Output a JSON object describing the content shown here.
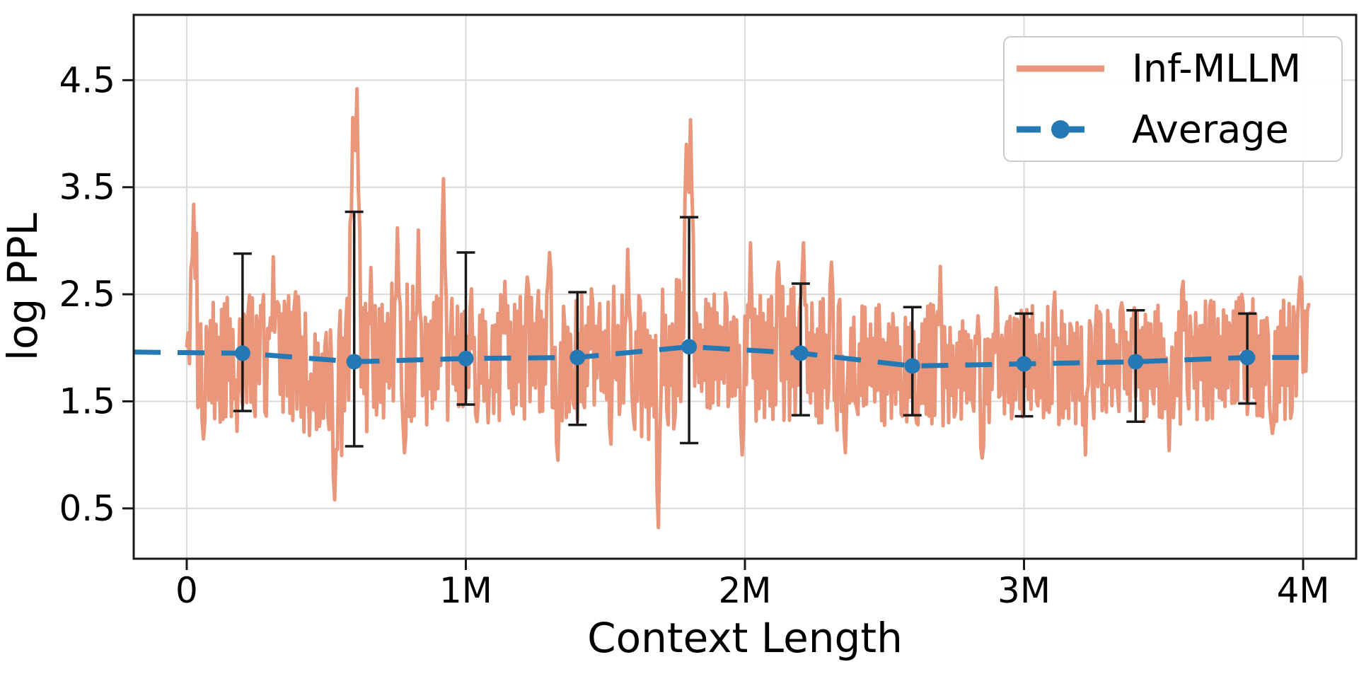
{
  "chart_data": {
    "type": "line",
    "title": "",
    "xlabel": "Context Length",
    "ylabel": "log PPL",
    "axes": {
      "xlim": [
        -0.19,
        4.19
      ],
      "ylim": [
        0.03,
        5.11
      ],
      "x_in_millions": true,
      "grid": true,
      "grid_color": "#d9d9d9",
      "spine_color": "#1a1a1a",
      "xticks": [
        {
          "value": 0,
          "label": "0"
        },
        {
          "value": 1,
          "label": "1M"
        },
        {
          "value": 2,
          "label": "2M"
        },
        {
          "value": 3,
          "label": "3M"
        },
        {
          "value": 4,
          "label": "4M"
        }
      ],
      "yticks": [
        {
          "value": 0.5,
          "label": "0.5"
        },
        {
          "value": 1.5,
          "label": "1.5"
        },
        {
          "value": 2.5,
          "label": "2.5"
        },
        {
          "value": 3.5,
          "label": "3.5"
        },
        {
          "value": 4.5,
          "label": "4.5"
        }
      ]
    },
    "series": [
      {
        "name": "Inf-MLLM",
        "kind": "noisy-line",
        "color": "#E9967A",
        "linewidth": 5,
        "x_start": 0.0,
        "x_end": 4.02,
        "step": 0.005,
        "jitter": {
          "seed": 20240612,
          "min_frac": 0.32,
          "alternate_prob": 0.82
        },
        "envelope": [
          [
            0.0,
            1.95,
            0.1
          ],
          [
            0.03,
            2.3,
            1.0
          ],
          [
            0.06,
            1.8,
            0.62
          ],
          [
            0.12,
            1.9,
            0.6
          ],
          [
            0.2,
            1.92,
            0.62
          ],
          [
            0.3,
            1.88,
            0.62
          ],
          [
            0.4,
            1.9,
            0.65
          ],
          [
            0.5,
            1.65,
            0.7
          ],
          [
            0.55,
            1.6,
            0.75
          ],
          [
            0.6,
            2.0,
            0.9
          ],
          [
            0.65,
            1.9,
            0.68
          ],
          [
            0.75,
            1.95,
            0.7
          ],
          [
            0.85,
            1.9,
            0.65
          ],
          [
            0.95,
            1.9,
            0.6
          ],
          [
            1.05,
            1.88,
            0.58
          ],
          [
            1.15,
            1.92,
            0.6
          ],
          [
            1.25,
            1.9,
            0.65
          ],
          [
            1.35,
            1.9,
            0.62
          ],
          [
            1.45,
            1.92,
            0.6
          ],
          [
            1.55,
            1.95,
            0.65
          ],
          [
            1.65,
            1.8,
            0.7
          ],
          [
            1.75,
            1.95,
            0.7
          ],
          [
            1.85,
            1.95,
            0.65
          ],
          [
            1.95,
            1.95,
            0.67
          ],
          [
            2.05,
            1.92,
            0.62
          ],
          [
            2.15,
            1.95,
            0.65
          ],
          [
            2.25,
            1.92,
            0.62
          ],
          [
            2.35,
            1.8,
            0.65
          ],
          [
            2.45,
            1.85,
            0.58
          ],
          [
            2.55,
            1.82,
            0.55
          ],
          [
            2.65,
            1.85,
            0.58
          ],
          [
            2.75,
            1.82,
            0.55
          ],
          [
            2.85,
            1.78,
            0.6
          ],
          [
            2.95,
            1.83,
            0.55
          ],
          [
            3.05,
            1.85,
            0.55
          ],
          [
            3.15,
            1.82,
            0.58
          ],
          [
            3.25,
            1.85,
            0.55
          ],
          [
            3.35,
            1.85,
            0.55
          ],
          [
            3.45,
            1.82,
            0.6
          ],
          [
            3.55,
            1.88,
            0.6
          ],
          [
            3.65,
            1.9,
            0.58
          ],
          [
            3.75,
            1.9,
            0.58
          ],
          [
            3.85,
            1.88,
            0.58
          ],
          [
            3.95,
            1.9,
            0.6
          ],
          [
            4.02,
            2.2,
            0.45
          ]
        ],
        "spikes": [
          [
            0.025,
            3.34,
            0.012
          ],
          [
            0.31,
            2.85,
            0.009
          ],
          [
            0.595,
            4.15,
            0.014
          ],
          [
            0.61,
            4.42,
            0.014
          ],
          [
            0.66,
            2.75,
            0.009
          ],
          [
            0.755,
            3.12,
            0.012
          ],
          [
            0.83,
            3.1,
            0.01
          ],
          [
            0.92,
            3.58,
            0.012
          ],
          [
            1.02,
            2.55,
            0.009
          ],
          [
            1.14,
            2.62,
            0.009
          ],
          [
            1.22,
            2.66,
            0.009
          ],
          [
            1.3,
            2.89,
            0.01
          ],
          [
            1.45,
            2.55,
            0.009
          ],
          [
            1.58,
            2.92,
            0.01
          ],
          [
            1.79,
            3.9,
            0.013
          ],
          [
            1.806,
            4.13,
            0.013
          ],
          [
            2.02,
            2.98,
            0.01
          ],
          [
            2.12,
            2.8,
            0.01
          ],
          [
            2.21,
            2.98,
            0.01
          ],
          [
            2.31,
            2.8,
            0.009
          ],
          [
            2.7,
            2.76,
            0.01
          ],
          [
            2.9,
            2.56,
            0.009
          ],
          [
            3.11,
            2.52,
            0.009
          ],
          [
            3.35,
            2.42,
            0.009
          ],
          [
            3.57,
            2.62,
            0.01
          ],
          [
            3.78,
            2.5,
            0.009
          ],
          [
            3.99,
            2.66,
            0.01
          ]
        ],
        "dips": [
          [
            0.06,
            1.15,
            0.01
          ],
          [
            0.18,
            1.22,
            0.009
          ],
          [
            0.44,
            1.18,
            0.009
          ],
          [
            0.53,
            0.58,
            0.013
          ],
          [
            0.78,
            1.02,
            0.01
          ],
          [
            1.08,
            1.3,
            0.009
          ],
          [
            1.33,
            0.95,
            0.011
          ],
          [
            1.52,
            1.1,
            0.009
          ],
          [
            1.69,
            0.32,
            0.01
          ],
          [
            1.99,
            1.0,
            0.011
          ],
          [
            2.36,
            1.02,
            0.011
          ],
          [
            2.85,
            0.97,
            0.011
          ],
          [
            3.22,
            1.0,
            0.01
          ],
          [
            3.52,
            1.04,
            0.011
          ],
          [
            3.89,
            1.2,
            0.009
          ]
        ]
      },
      {
        "name": "Average",
        "kind": "errorbar-line",
        "color": "#2478B4",
        "linewidth": 7,
        "dash": [
          38,
          24
        ],
        "marker_radius": 11,
        "errorbar": {
          "color": "#1a1a1a",
          "linewidth": 3.5,
          "cap_halfwidth": 13
        },
        "x": [
          0.2,
          0.6,
          1.0,
          1.4,
          1.8,
          2.2,
          2.6,
          3.0,
          3.4,
          3.8
        ],
        "mean": [
          1.95,
          1.87,
          1.9,
          1.91,
          2.01,
          1.95,
          1.83,
          1.85,
          1.87,
          1.91
        ],
        "lo": [
          1.41,
          1.08,
          1.47,
          1.28,
          1.11,
          1.37,
          1.37,
          1.36,
          1.31,
          1.48
        ],
        "hi": [
          2.88,
          3.27,
          2.89,
          2.52,
          3.22,
          2.6,
          2.38,
          2.32,
          2.35,
          2.32
        ],
        "line_x": [
          -0.19,
          0.2,
          0.6,
          1.0,
          1.4,
          1.8,
          2.2,
          2.6,
          3.0,
          3.4,
          3.8,
          4.02
        ],
        "line_y": [
          1.96,
          1.95,
          1.87,
          1.9,
          1.91,
          2.01,
          1.95,
          1.83,
          1.85,
          1.87,
          1.91,
          1.91
        ]
      }
    ],
    "legend": {
      "position": "upper-right",
      "frame_color": "#cccccc",
      "background": "#ffffff",
      "entries": [
        {
          "label": "Inf-MLLM",
          "series": "Inf-MLLM"
        },
        {
          "label": "Average",
          "series": "Average"
        }
      ]
    }
  }
}
